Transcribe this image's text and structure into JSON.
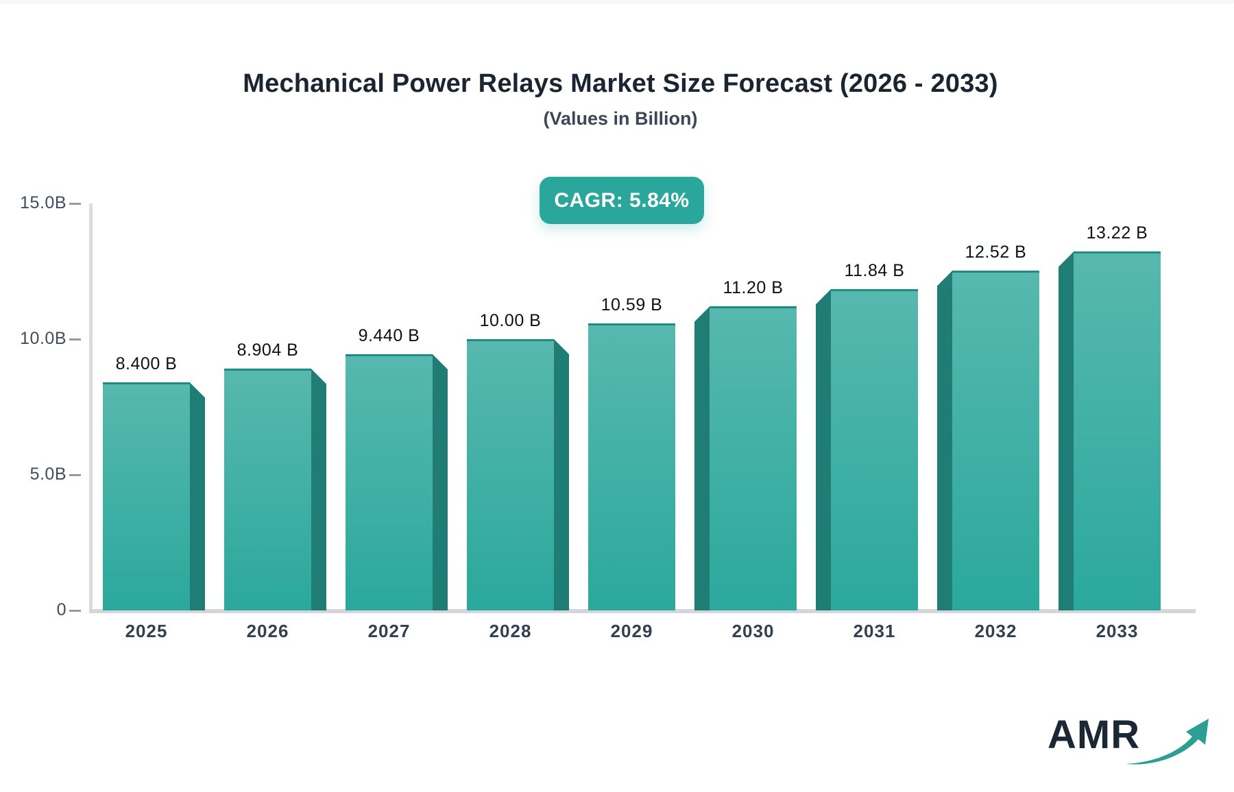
{
  "header": {
    "title": "Mechanical Power Relays Market Size Forecast (2026 - 2033)",
    "subtitle": "(Values in Billion)",
    "cagr_badge": "CAGR: 5.84%"
  },
  "chart_data": {
    "type": "bar",
    "title": "Mechanical Power Relays Market Size Forecast (2026 - 2033)",
    "subtitle": "(Values in Billion)",
    "cagr_percent": "5.84%",
    "categories": [
      "2025",
      "2026",
      "2027",
      "2028",
      "2029",
      "2030",
      "2031",
      "2032",
      "2033"
    ],
    "values": [
      8.4,
      8.904,
      9.44,
      10.0,
      10.59,
      11.2,
      11.84,
      12.52,
      13.22
    ],
    "value_labels": [
      "8.400 B",
      "8.904 B",
      "9.440 B",
      "10.00 B",
      "10.59 B",
      "11.20 B",
      "11.84 B",
      "12.52 B",
      "13.22 B"
    ],
    "xlabel": "",
    "ylabel": "",
    "ylim": [
      0,
      15
    ],
    "yticks": [
      {
        "value": 15,
        "label": "15.0B"
      },
      {
        "value": 10,
        "label": "10.0B"
      },
      {
        "value": 5,
        "label": "5.0B"
      },
      {
        "value": 0,
        "label": "0"
      }
    ],
    "grid": false,
    "legend": false,
    "colors": {
      "bar_face_top": "#57b8ae",
      "bar_face_bottom": "#2ba89c",
      "bar_side_shadow": "#1f7d75",
      "bar_top_edge": "#1d8c82",
      "badge_background": "#2aa69d",
      "axis_line": "#d9dbe0",
      "text_dark": "#1b2431"
    }
  },
  "logo": {
    "text": "AMR"
  }
}
